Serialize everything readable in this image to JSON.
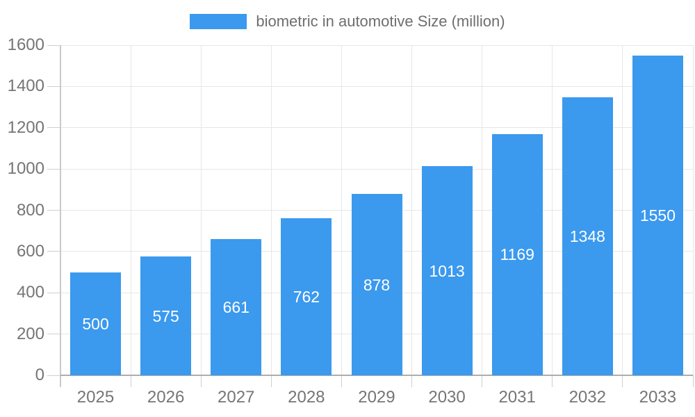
{
  "chart_data": {
    "type": "bar",
    "title": "biometric in automotive Size (million)",
    "legend": [
      "biometric in automotive Size (million)"
    ],
    "legend_position": "top",
    "categories": [
      "2025",
      "2026",
      "2027",
      "2028",
      "2029",
      "2030",
      "2031",
      "2032",
      "2033"
    ],
    "values": [
      500,
      575,
      661,
      762,
      878,
      1013,
      1169,
      1348,
      1550
    ],
    "value_labels": [
      "500",
      "575",
      "661",
      "762",
      "878",
      "1013",
      "1169",
      "1348",
      "1550"
    ],
    "xlabel": "",
    "ylabel": "",
    "ylim": [
      0,
      1600
    ],
    "ytick_step": 200,
    "yticks": [
      "0",
      "200",
      "400",
      "600",
      "800",
      "1000",
      "1200",
      "1400",
      "1600"
    ],
    "grid": "on",
    "colors": {
      "bar": "#3B99EE",
      "gridline": "#E7E7E7",
      "axis_line_y": "#C9C9C9",
      "axis_line_x": "#ADADAD",
      "tick_mark": "#CFCFCF",
      "tick_label": "#757575",
      "legend_text": "#6E6E6E",
      "value_label": "#FFFFFF",
      "background": "#FFFFFF"
    }
  }
}
